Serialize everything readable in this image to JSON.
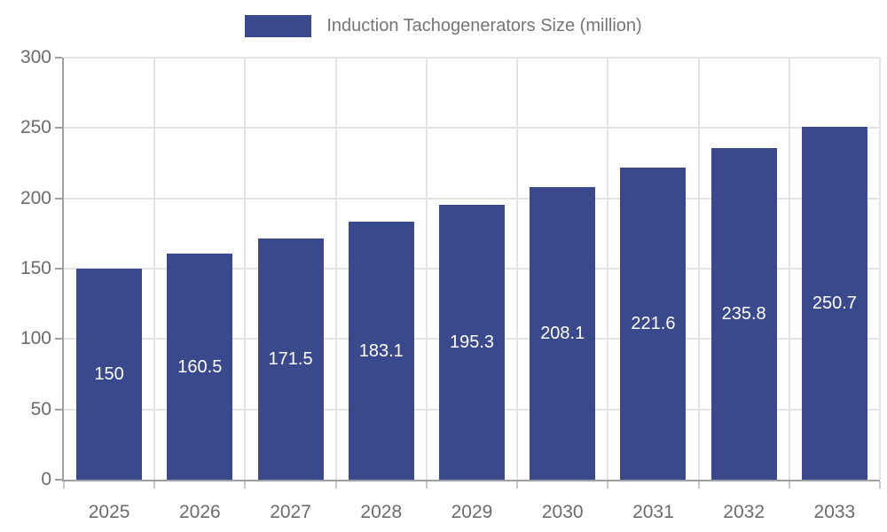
{
  "chart_data": {
    "type": "bar",
    "title": "",
    "legend": "Induction Tachogenerators Size (million)",
    "categories": [
      "2025",
      "2026",
      "2027",
      "2028",
      "2029",
      "2030",
      "2031",
      "2032",
      "2033"
    ],
    "values": [
      150,
      160.5,
      171.5,
      183.1,
      195.3,
      208.1,
      221.6,
      235.8,
      250.7
    ],
    "value_labels": [
      "150",
      "160.5",
      "171.5",
      "183.1",
      "195.3",
      "208.1",
      "221.6",
      "235.8",
      "250.7"
    ],
    "xlabel": "",
    "ylabel": "",
    "ylim": [
      0,
      300
    ],
    "y_ticks": [
      0,
      50,
      100,
      150,
      200,
      250,
      300
    ],
    "grid": true,
    "legend_position": "top",
    "colors": {
      "bar": "#39498B",
      "bar_label": "#ffffff",
      "axis": "#a0a0a0",
      "gridline": "#e4e4e4",
      "x_tick_mark": "#c8c8c8",
      "tick_text": "#6b6b6b",
      "legend_text": "#757575",
      "background": "#ffffff"
    }
  }
}
